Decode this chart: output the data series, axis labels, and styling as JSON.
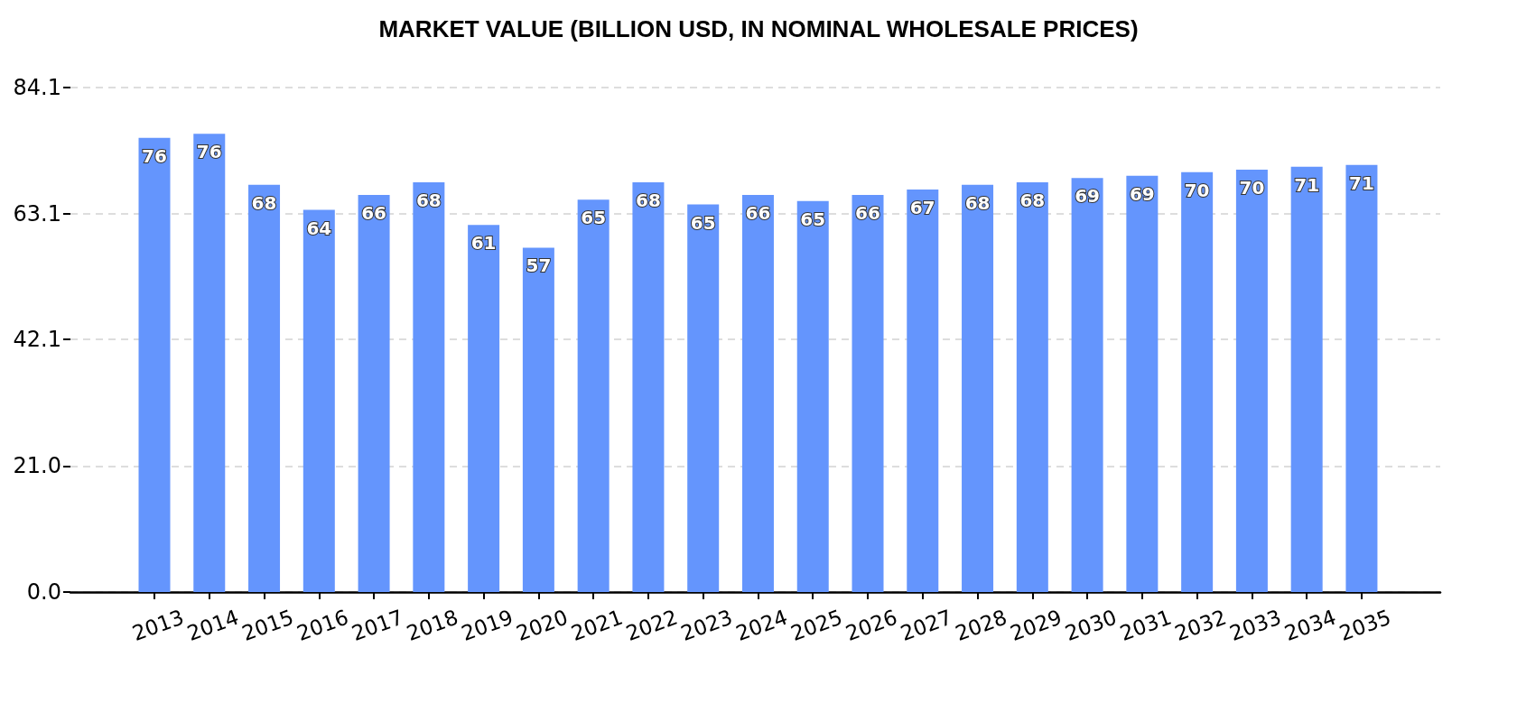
{
  "chart_data": {
    "type": "bar",
    "title": "MARKET VALUE (BILLION USD, IN NOMINAL WHOLESALE PRICES)",
    "categories": [
      "2013",
      "2014",
      "2015",
      "2016",
      "2017",
      "2018",
      "2019",
      "2020",
      "2021",
      "2022",
      "2023",
      "2024",
      "2025",
      "2026",
      "2027",
      "2028",
      "2029",
      "2030",
      "2031",
      "2032",
      "2033",
      "2034",
      "2035"
    ],
    "values": [
      75.7,
      76.4,
      67.9,
      63.7,
      66.2,
      68.3,
      61.2,
      57.4,
      65.4,
      68.3,
      64.6,
      66.2,
      65.2,
      66.2,
      67.1,
      67.9,
      68.3,
      69.0,
      69.4,
      70.0,
      70.4,
      70.9,
      71.2
    ],
    "value_labels": [
      "76",
      "76",
      "68",
      "64",
      "66",
      "68",
      "61",
      "57",
      "65",
      "68",
      "65",
      "66",
      "65",
      "66",
      "67",
      "68",
      "68",
      "69",
      "69",
      "70",
      "70",
      "71",
      "71"
    ],
    "color": "#6495fd",
    "ylim": [
      0,
      84.1
    ],
    "yticks": [
      {
        "value": 0,
        "label": "0.0"
      },
      {
        "value": 21.0,
        "label": "21.0"
      },
      42.1,
      63.1,
      84.1
    ],
    "grid": "y"
  }
}
